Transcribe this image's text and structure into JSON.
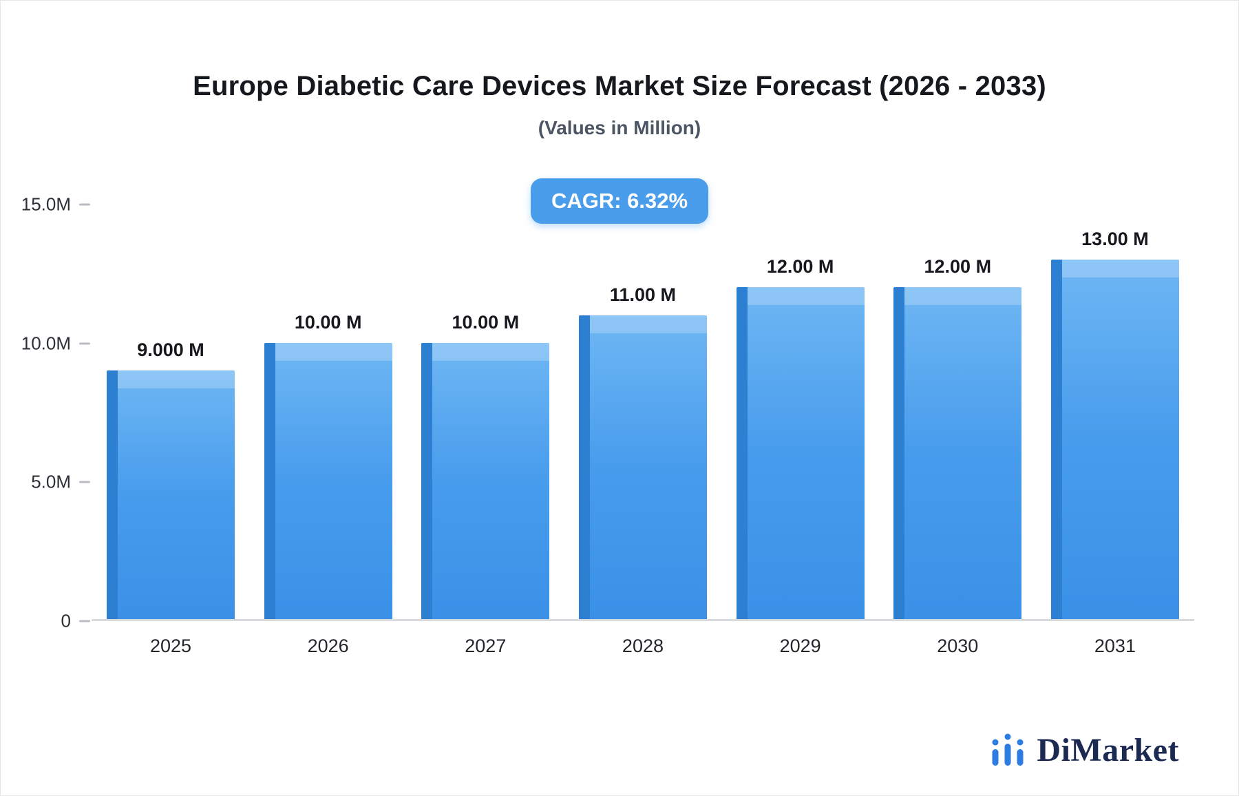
{
  "chart_data": {
    "type": "bar",
    "title": "Europe Diabetic Care Devices Market Size Forecast (2026 - 2033)",
    "subtitle": "(Values in Million)",
    "badge": "CAGR: 6.32%",
    "categories": [
      "2025",
      "2026",
      "2027",
      "2028",
      "2029",
      "2030",
      "2031"
    ],
    "values": [
      9,
      10,
      10,
      11,
      12,
      12,
      13
    ],
    "value_labels": [
      "9.000 M",
      "10.00 M",
      "10.00 M",
      "11.00 M",
      "12.00 M",
      "12.00 M",
      "13.00 M"
    ],
    "xlabel": "",
    "ylabel": "",
    "ylim": [
      0,
      15
    ],
    "yticks": [
      {
        "label": "15.0M",
        "value": 15
      },
      {
        "label": "10.0M",
        "value": 10
      },
      {
        "label": "5.0M",
        "value": 5
      },
      {
        "label": "0",
        "value": 0
      }
    ],
    "grid": false,
    "legend": "none",
    "colors": {
      "bar_top": "#6fb7f4",
      "bar_mid": "#479cec",
      "bar_bottom": "#3b91e7",
      "bar_side": "#2d7fd2",
      "badge_bg": "#4a9deb",
      "title_color": "#15181d",
      "logo_color": "#1c2951",
      "logo_icon_color": "#2f7ce0"
    }
  },
  "logo": {
    "text": "DiMarket"
  }
}
